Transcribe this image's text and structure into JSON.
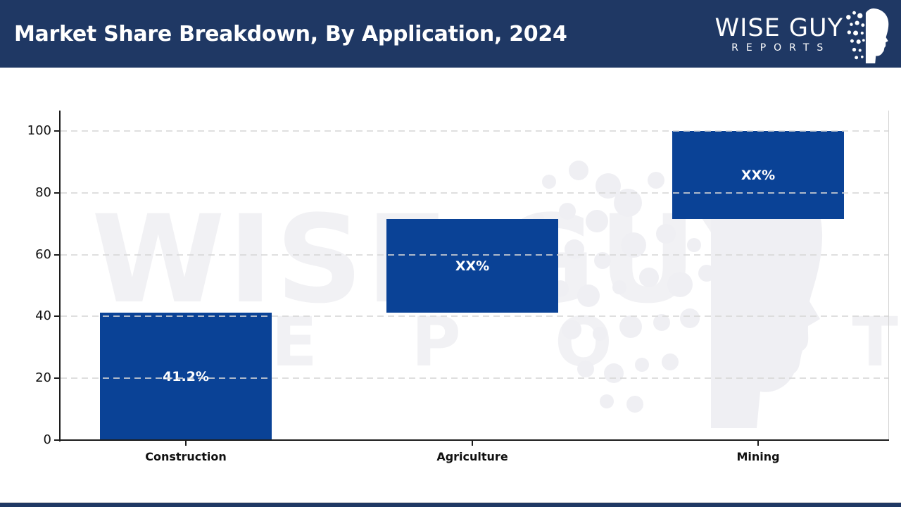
{
  "header": {
    "title": "Market Share Breakdown, By Application, 2024",
    "logo": {
      "line1": "WISE GUY",
      "line2": "REPORTS"
    }
  },
  "watermark": {
    "line1": "WISE GUY",
    "line2": "R E P O R T S"
  },
  "colors": {
    "header_bg": "#1f3864",
    "footer_bg": "#1f3864",
    "bar_fill": "#0a4296",
    "bar_label": "#ffffff",
    "gridline": "#d7d7d7",
    "axis": "#1c1c1c",
    "watermark": "#f1f1f4"
  },
  "chart_data": {
    "type": "bar",
    "subtype": "waterfall",
    "title": "Market Share Breakdown, By Application, 2024",
    "categories": [
      "Construction",
      "Agriculture",
      "Mining"
    ],
    "series": [
      {
        "name": "Market Share (%)",
        "segments": [
          [
            0,
            41.2
          ],
          [
            41.2,
            71.5
          ],
          [
            71.5,
            100
          ]
        ]
      }
    ],
    "values": [
      41.2,
      30.3,
      28.5
    ],
    "bar_labels": [
      "41.2%",
      "XX%",
      "XX%"
    ],
    "xlabel": "",
    "ylabel": "",
    "ylim": [
      0,
      100
    ],
    "yticks": [
      0,
      20,
      40,
      60,
      80,
      100
    ],
    "grid": "horizontal-dashed",
    "legend": "none"
  }
}
